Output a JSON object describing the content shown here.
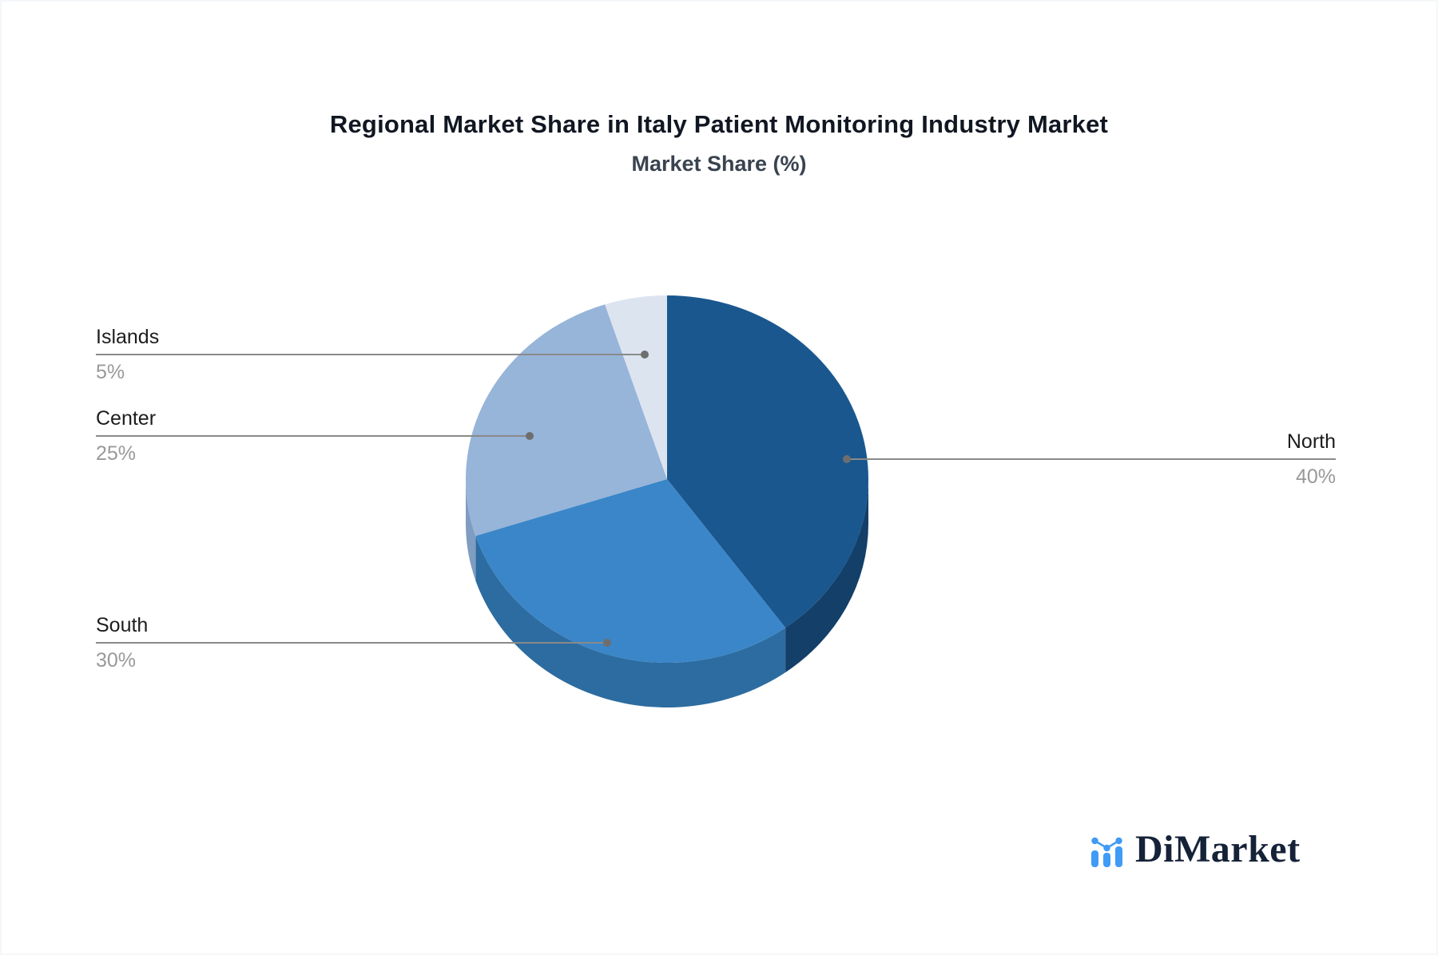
{
  "chart_data": {
    "type": "pie",
    "style": "3d",
    "title": "Regional Market Share in Italy Patient Monitoring Industry Market",
    "subtitle": "Market Share (%)",
    "unit": "%",
    "direction": "clockwise",
    "start_angle_deg": 0,
    "legend_position": "none",
    "labels_style": "outside-leader-lines",
    "categories": [
      "North",
      "South",
      "Center",
      "Islands"
    ],
    "values": [
      40,
      30,
      25,
      5
    ],
    "slices": [
      {
        "name": "North",
        "value": 40,
        "percent_label": "40%",
        "color": "#1a578f",
        "side_color": "#133f69"
      },
      {
        "name": "South",
        "value": 30,
        "percent_label": "30%",
        "color": "#3a86c8",
        "side_color": "#2d6ca0"
      },
      {
        "name": "Center",
        "value": 25,
        "percent_label": "25%",
        "color": "#97b4d9",
        "side_color": "#7f9cc1"
      },
      {
        "name": "Islands",
        "value": 5,
        "percent_label": "5%",
        "color": "#dce4f0",
        "side_color": "#b9c5d8"
      }
    ],
    "leader_line_color": "#8a8a8a",
    "leader_dot_color": "#6e6e6e",
    "label_text_color": "#1d1d1d",
    "percent_text_color": "#98999b"
  },
  "logo": {
    "text": "DiMarket",
    "icon": "bar-chart-icon",
    "icon_color": "#3f9bf6",
    "text_color": "#152238"
  }
}
